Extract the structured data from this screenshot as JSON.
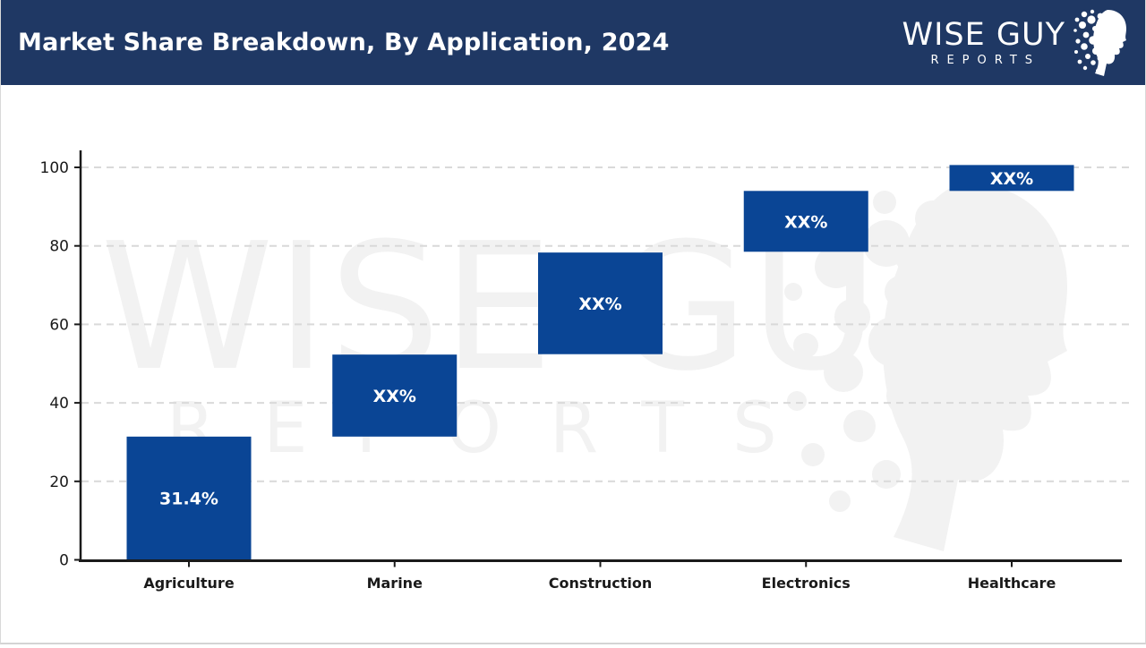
{
  "header": {
    "title": "Market Share Breakdown, By Application, 2024",
    "bg_color": "#1f3864",
    "logo": {
      "line1": "WISE GUY",
      "line2": "REPORTS"
    }
  },
  "watermark": {
    "line1": "WISE GUY",
    "line2": "REPORTS"
  },
  "chart_data": {
    "type": "bar",
    "subtype": "waterfall-stacked-percentage",
    "title": "Market Share Breakdown, By Application, 2024",
    "categories": [
      "Agriculture",
      "Marine",
      "Construction",
      "Electronics",
      "Healthcare"
    ],
    "segments": [
      {
        "category": "Agriculture",
        "start": 0,
        "end": 31.4,
        "label": "31.4%"
      },
      {
        "category": "Marine",
        "start": 31.4,
        "end": 52.3,
        "label": "XX%"
      },
      {
        "category": "Construction",
        "start": 52.4,
        "end": 78.3,
        "label": "XX%"
      },
      {
        "category": "Electronics",
        "start": 78.5,
        "end": 94.0,
        "label": "XX%"
      },
      {
        "category": "Healthcare",
        "start": 94.0,
        "end": 100.6,
        "label": "XX%"
      }
    ],
    "y_ticks": [
      0,
      20,
      40,
      60,
      80,
      100
    ],
    "ylim": [
      0,
      104.5
    ],
    "xlabel": "",
    "ylabel": "",
    "grid": "horizontal-dashed",
    "legend": "none",
    "colors": {
      "bar": "#0a4595",
      "bar_label": "#ffffff",
      "axis": "#1a1a1a",
      "tick_label": "#1a1a1a",
      "grid_line": "#d9d9d9"
    }
  }
}
